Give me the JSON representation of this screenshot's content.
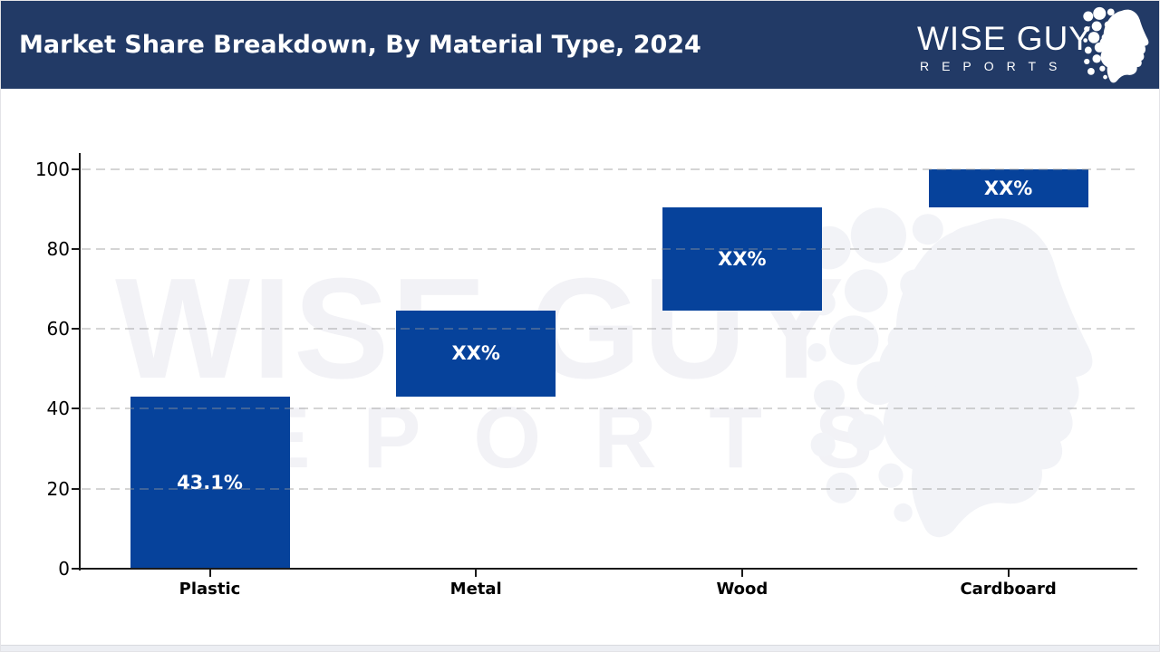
{
  "header": {
    "title": "Market Share Breakdown, By Material Type, 2024",
    "logo": {
      "line1": "WISE GUY",
      "line2": "REPORTS"
    }
  },
  "watermark": {
    "line1": "WISE GUY",
    "line2": "REPORTS"
  },
  "chart_data": {
    "type": "bar",
    "subtype": "floating-waterfall",
    "title": "Market Share Breakdown, By Material Type, 2024",
    "categories": [
      "Plastic",
      "Metal",
      "Wood",
      "Cardboard"
    ],
    "segments": [
      {
        "category": "Plastic",
        "start": 0,
        "end": 43.1,
        "label": "43.1%"
      },
      {
        "category": "Metal",
        "start": 43.1,
        "end": 64.5,
        "label": "XX%"
      },
      {
        "category": "Wood",
        "start": 64.5,
        "end": 90.3,
        "label": "XX%"
      },
      {
        "category": "Cardboard",
        "start": 90.3,
        "end": 100,
        "label": "XX%"
      }
    ],
    "xlabel": "",
    "ylabel": "",
    "yticks": [
      0,
      20,
      40,
      60,
      80,
      100
    ],
    "ylim": [
      0,
      103.5
    ],
    "grid": "horizontal-dashed",
    "legend": "none",
    "bar_color": "#06429B"
  },
  "colors": {
    "header_bg": "#223A66",
    "bar": "#06429B",
    "grid": "#dcdcdc",
    "watermark": "#f2f2f6",
    "axis": "#1a1a1a",
    "background": "#ffffff"
  }
}
